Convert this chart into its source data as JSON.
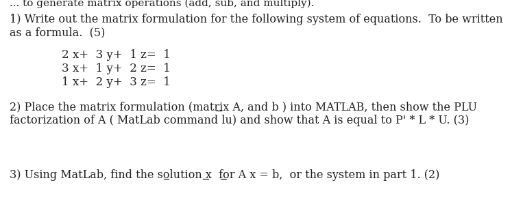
{
  "bg_color": "#ffffff",
  "text_color": "#231f20",
  "font_size": 11.5,
  "eq_font_size": 12,
  "figsize": [
    7.63,
    2.93
  ],
  "dpi": 100,
  "top_partial": "... to generate matrix operations (add, sub, and multiply).",
  "q1_line1": "1) Write out the matrix formulation for the following system of equations.  To be written",
  "q1_line2": "as a formula.  (5)",
  "eq1": "2 x+  3 y+  1 z=  1",
  "eq2": "3 x+  1 y+  2 z=  1",
  "eq3": "1 x+  2 y+  3 z=  1",
  "q2_line1": "2) Place the matrix formulation (matrix A, and b ) into MATLAB, then show the PLU",
  "q2_line2": "factorization of A ( MatLab command lu) and show that A is equal to P' * L * U. (3)",
  "q3_line1": "3) Using MatLab, find the solution x  for A x = b,  or the system in part 1. (2)"
}
